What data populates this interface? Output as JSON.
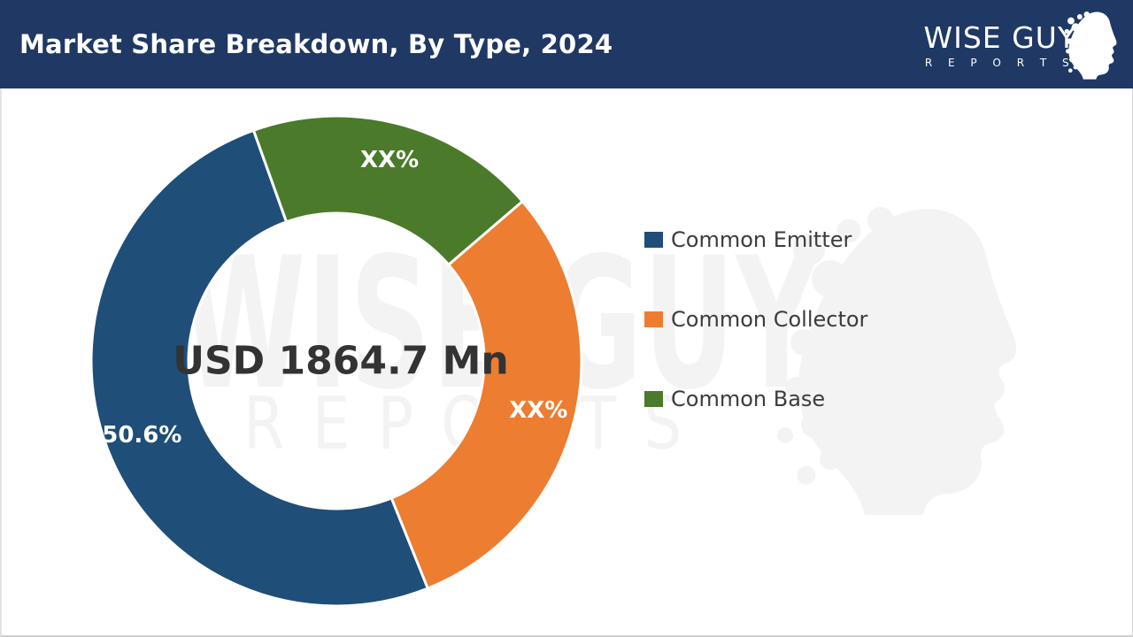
{
  "header": {
    "title": "Market Share Breakdown, By Type, 2024",
    "logo_line1": "WISE GUY",
    "logo_line2": "R E P O R T S"
  },
  "watermark": {
    "line1": "WISE GUY",
    "line2": "REPORTS"
  },
  "chart_data": {
    "type": "pie",
    "subtype": "donut",
    "title": "Market Share Breakdown, By Type, 2024",
    "center_label": "USD 1864.7 Mn",
    "start_angle_deg": 158.1,
    "draw_order": [
      0,
      2,
      1
    ],
    "clockwise": true,
    "legend_position": "right",
    "segments": [
      {
        "label": "Common Emitter",
        "value_pct": 50.6,
        "display": "50.6%",
        "color": "#1F4E79"
      },
      {
        "label": "Common Collector",
        "value_pct": 30.2,
        "display": "XX%",
        "color": "#ED7D31"
      },
      {
        "label": "Common Base",
        "value_pct": 19.2,
        "display": "XX%",
        "color": "#4A7A2A"
      }
    ]
  },
  "colors": {
    "header_bg": "#1F3864",
    "background": "#FFFFFF",
    "watermark": "#F3F3F3",
    "center_text": "#333333",
    "slice_label_text": "#FFFFFF",
    "legend_text": "#3C3C3C",
    "separator": "#FFFFFF"
  }
}
